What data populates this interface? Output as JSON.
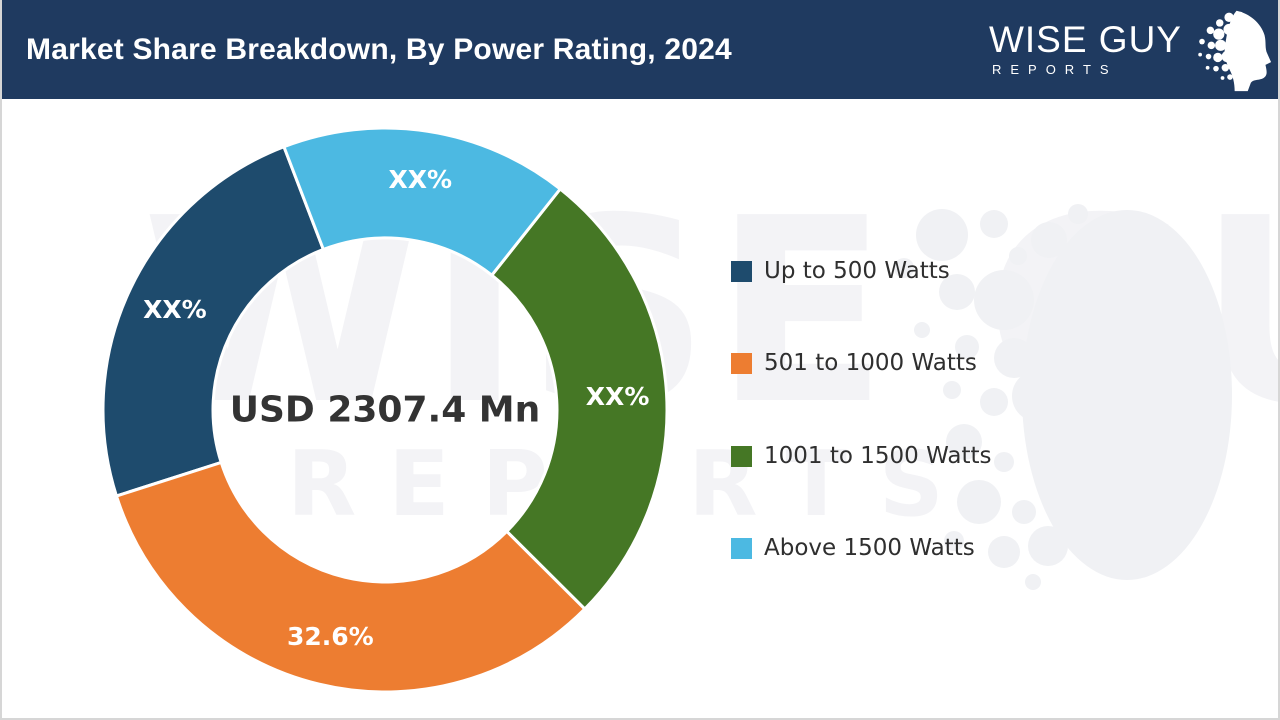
{
  "header": {
    "title": "Market Share Breakdown, By Power Rating, 2024",
    "bg_color": "#1f3a60",
    "logo": {
      "name": "WISE GUY",
      "sub": "REPORTS"
    }
  },
  "watermark": {
    "line1": "WISE GUY",
    "line2": "REPORTS"
  },
  "chart_data": {
    "type": "pie",
    "subtype": "donut",
    "title": "Market Share Breakdown, By Power Rating, 2024",
    "center_label": "USD 2307.4 Mn",
    "start_angle_deg": 111,
    "direction": "counterclockwise",
    "inner_radius_ratio": 0.61,
    "legend_position": "right",
    "segments": [
      {
        "label": "Up to 500 Watts",
        "display_label": "XX%",
        "value_pct": 24.1,
        "color": "#1e4b6d"
      },
      {
        "label": "501 to 1000 Watts",
        "display_label": "32.6%",
        "value_pct": 32.6,
        "color": "#ed7d31"
      },
      {
        "label": "1001 to 1500 Watts",
        "display_label": "XX%",
        "value_pct": 26.8,
        "color": "#457725"
      },
      {
        "label": "Above 1500 Watts",
        "display_label": "XX%",
        "value_pct": 16.5,
        "color": "#4cb9e2"
      }
    ]
  }
}
